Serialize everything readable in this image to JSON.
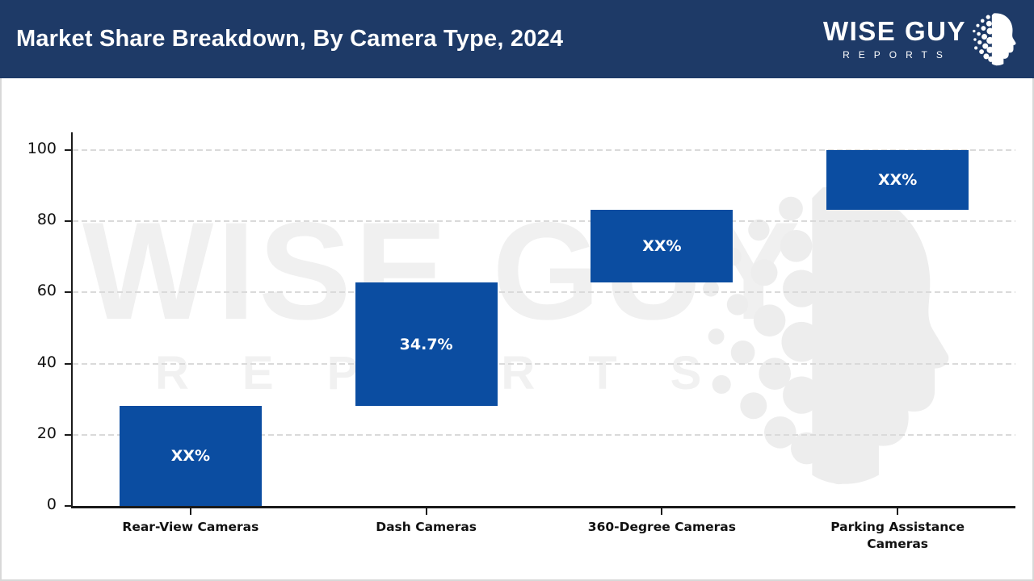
{
  "header": {
    "title": "Market Share Breakdown, By Camera Type, 2024",
    "background_color": "#1E3A67",
    "logo": {
      "name": "WISE GUY",
      "subtitle": "REPORTS",
      "head_icon": "dotted-head-profile-icon"
    }
  },
  "watermark": {
    "word": "WISE GUY",
    "subword": "REPORTS",
    "head_icon": "dotted-head-profile-icon"
  },
  "chart_data": {
    "type": "bar",
    "variant": "waterfall",
    "title": "Market Share Breakdown, By Camera Type, 2024",
    "xlabel": "",
    "ylabel": "",
    "ylim": [
      0,
      100
    ],
    "yticks": [
      0,
      20,
      40,
      60,
      80,
      100
    ],
    "grid": "horizontal-dashed",
    "legend": "none",
    "bar_color": "#0B4DA1",
    "bar_label_color": "#FFFFFF",
    "axis_color": "#1A1A1A",
    "gridline_color": "#DADADA",
    "categories": [
      "Rear-View Cameras",
      "Dash Cameras",
      "360-Degree Cameras",
      "Parking Assistance Cameras"
    ],
    "bars": [
      {
        "category": "Rear-View Cameras",
        "label": "XX%",
        "start": 0,
        "end": 28.1
      },
      {
        "category": "Dash Cameras",
        "label": "34.7%",
        "start": 28.1,
        "end": 62.8
      },
      {
        "category": "360-Degree Cameras",
        "label": "XX%",
        "start": 62.8,
        "end": 83.3
      },
      {
        "category": "Parking Assistance Cameras",
        "label": "XX%",
        "start": 83.3,
        "end": 100
      }
    ]
  }
}
